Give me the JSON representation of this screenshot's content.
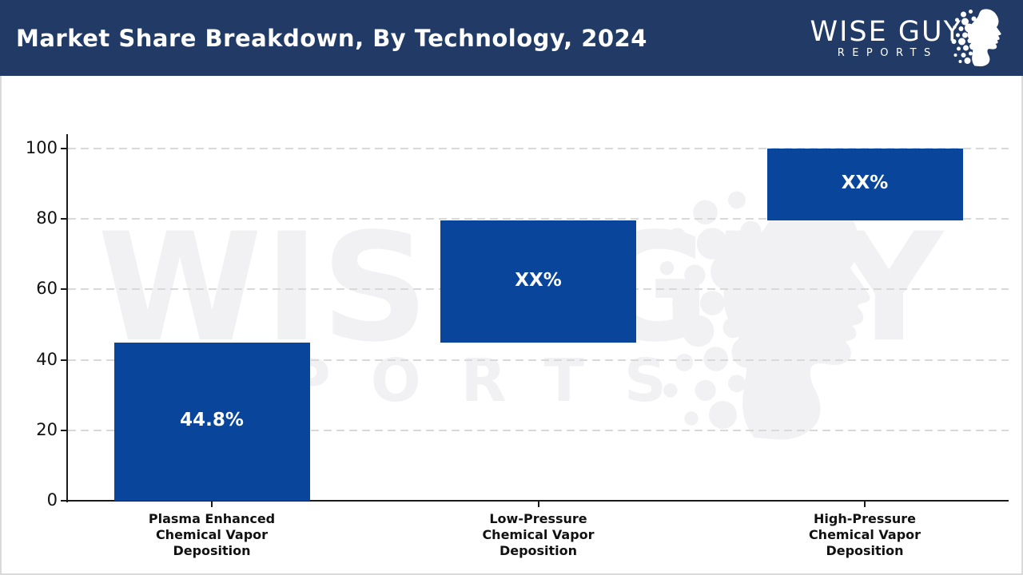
{
  "header": {
    "title": "Market Share Breakdown, By Technology, 2024",
    "bg_color": "#213a66",
    "logo": {
      "line1": "WISE GUY",
      "line2": "REPORTS"
    }
  },
  "watermark": {
    "line1": "WISE GUY",
    "line2": "REPORTS"
  },
  "chart_data": {
    "type": "bar",
    "subtype": "waterfall",
    "title": "Market Share Breakdown, By Technology, 2024",
    "categories": [
      [
        "Plasma Enhanced",
        "Chemical Vapor",
        "Deposition"
      ],
      [
        "Low-Pressure",
        "Chemical Vapor",
        "Deposition"
      ],
      [
        "High-Pressure",
        "Chemical Vapor",
        "Deposition"
      ]
    ],
    "segments": [
      {
        "start": 0,
        "end": 44.8,
        "label": "44.8%"
      },
      {
        "start": 44.8,
        "end": 79.5,
        "label": "XX%"
      },
      {
        "start": 79.5,
        "end": 100,
        "label": "XX%"
      }
    ],
    "yticks": [
      0,
      20,
      40,
      60,
      80,
      100
    ],
    "ylim": [
      0,
      100
    ],
    "grid": "dashed-horizontal",
    "legend": "none",
    "bar_color": "#09459a",
    "bar_label_color": "#ffffff",
    "gridline_color": "#d9d9d9",
    "axis_color": "#1a1a1a"
  }
}
